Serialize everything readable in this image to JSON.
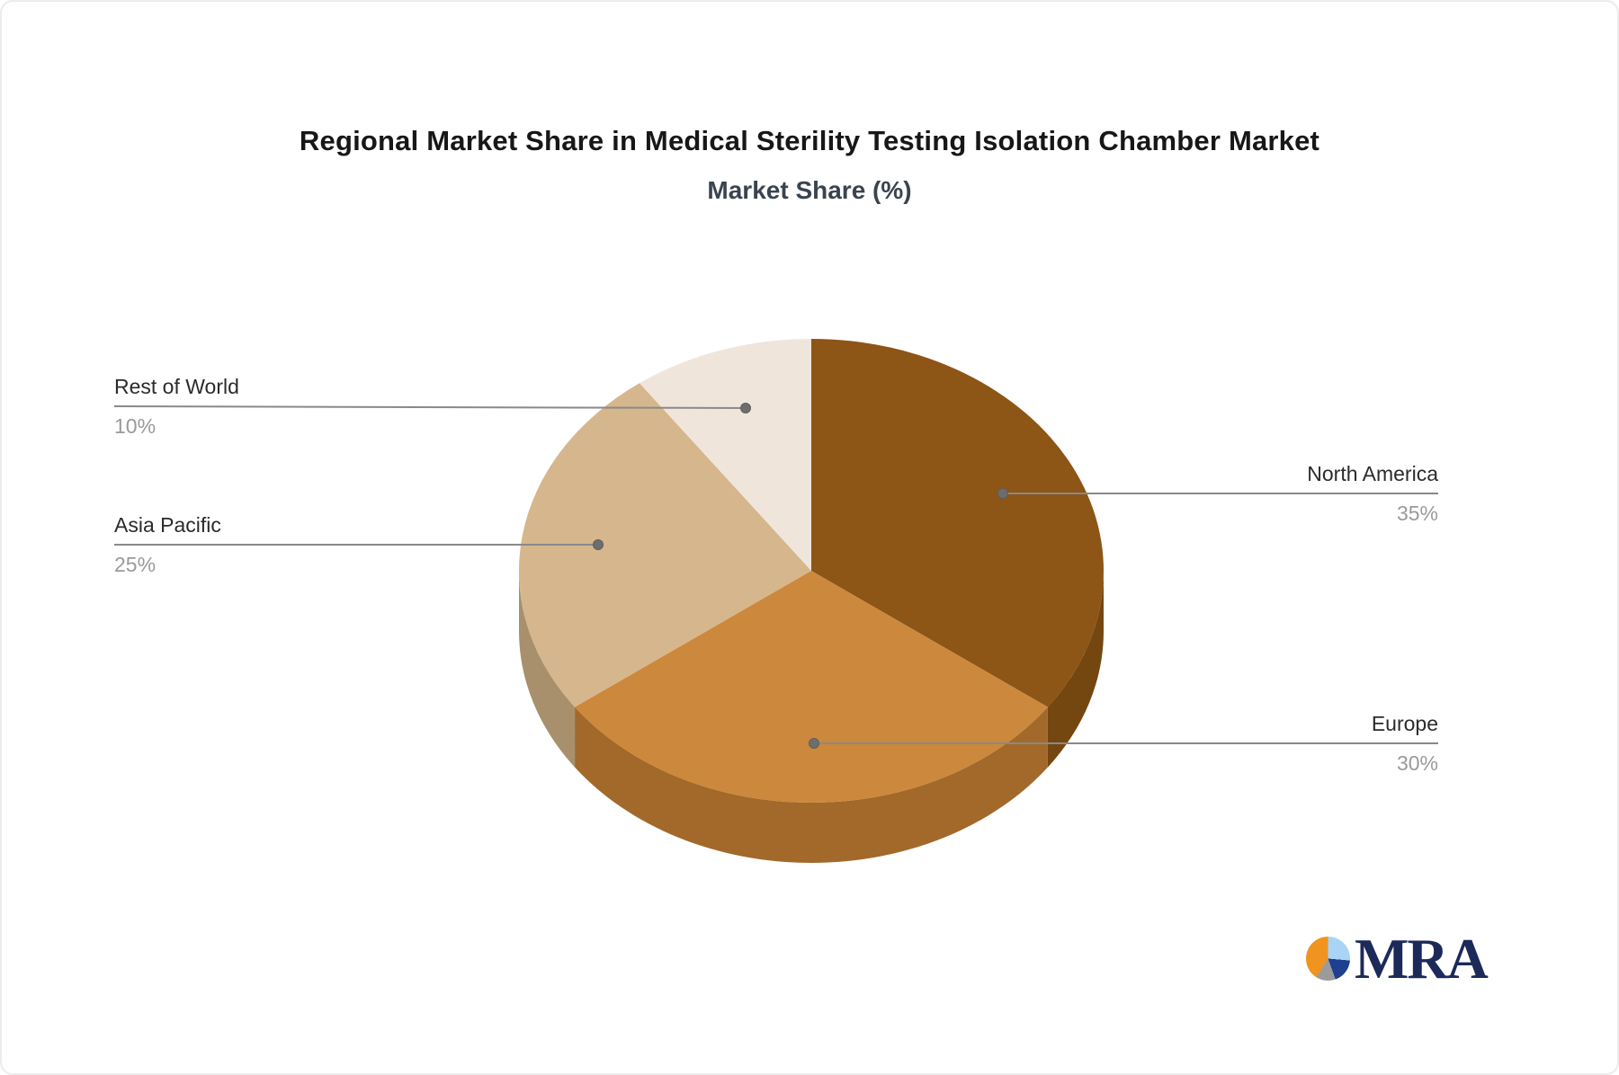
{
  "header": {
    "title": "Regional Market Share in Medical Sterility Testing Isolation Chamber Market",
    "subtitle": "Market Share (%)"
  },
  "chart_data": {
    "type": "pie",
    "title": "Regional Market Share in Medical Sterility Testing Isolation Chamber Market",
    "subtitle": "Market Share (%)",
    "unit": "%",
    "effect": "3d",
    "start_angle": "12-o-clock",
    "direction": "clockwise",
    "slices": [
      {
        "label": "North America",
        "value": 35,
        "color": "#8D5516",
        "side_color": "#744711"
      },
      {
        "label": "Europe",
        "value": 30,
        "color": "#CC883C",
        "side_color": "#A2692A"
      },
      {
        "label": "Asia Pacific",
        "value": 25,
        "color": "#D6B68C",
        "side_color": "#A8906C"
      },
      {
        "label": "Rest of World",
        "value": 10,
        "color": "#EFE5DB",
        "side_color": "#BFB2A4"
      }
    ]
  },
  "callouts": [
    {
      "name": "North America",
      "value": "35%",
      "side": "right"
    },
    {
      "name": "Europe",
      "value": "30%",
      "side": "right"
    },
    {
      "name": "Asia Pacific",
      "value": "25%",
      "side": "left"
    },
    {
      "name": "Rest of World",
      "value": "10%",
      "side": "left"
    }
  ],
  "logo": {
    "text": "MRA"
  },
  "colors": {
    "title": "#171717",
    "subtitle": "#3a4450",
    "label": "#2b2b2b",
    "percent": "#9a9a9a",
    "leader_line": "#898989",
    "leader_dot": "#6d6d6d",
    "logo_text": "#1c2a5a",
    "logo_orange": "#F0941F",
    "logo_lightblue": "#A9D4F5",
    "logo_navy": "#1F3F8F",
    "logo_gray": "#9B9B9B"
  }
}
